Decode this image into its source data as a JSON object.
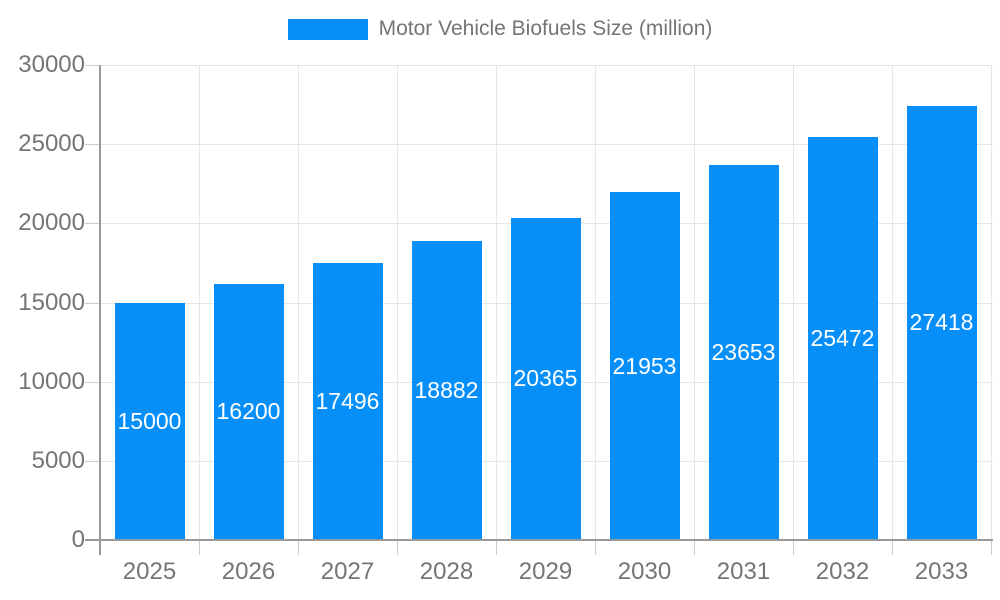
{
  "legend": {
    "label": "Motor Vehicle Biofuels Size (million)"
  },
  "chart_data": {
    "type": "bar",
    "title": "Motor Vehicle Biofuels Size (million)",
    "categories": [
      "2025",
      "2026",
      "2027",
      "2028",
      "2029",
      "2030",
      "2031",
      "2032",
      "2033"
    ],
    "values": [
      15000,
      16200,
      17496,
      18882,
      20365,
      21953,
      23653,
      25472,
      27418
    ],
    "series": [
      {
        "name": "Motor Vehicle Biofuels Size (million)",
        "values": [
          15000,
          16200,
          17496,
          18882,
          20365,
          21953,
          23653,
          25472,
          27418
        ]
      }
    ],
    "xlabel": "",
    "ylabel": "",
    "ylim": [
      0,
      30000
    ],
    "ytick_step": 5000,
    "ytick_labels": [
      "0",
      "5000",
      "10000",
      "15000",
      "20000",
      "25000",
      "30000"
    ],
    "grid": true,
    "bar_value_labels": true,
    "legend_position": "top",
    "colors": {
      "bar": "#068ff9",
      "grid": "#e6e6e6",
      "tick": "#cccccc",
      "axis": "#999999",
      "axis_text": "#757575",
      "value_text": "#ffffff",
      "background": "#ffffff"
    }
  }
}
